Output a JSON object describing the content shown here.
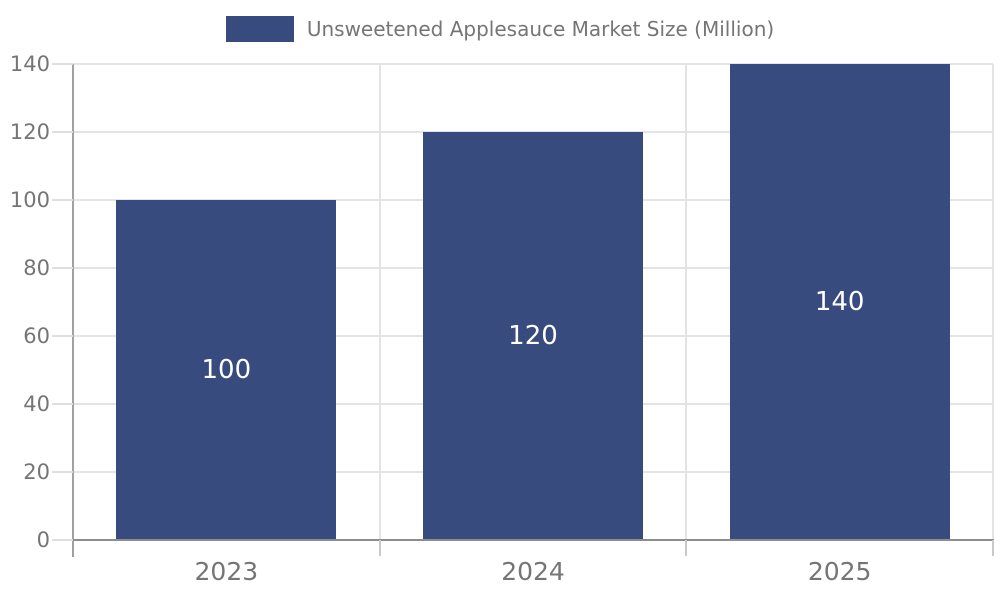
{
  "chart_data": {
    "type": "bar",
    "title": "Unsweetened Applesauce Market Size (Million)",
    "legend": {
      "label": "Unsweetened Applesauce Market Size (Million)",
      "position": "top"
    },
    "categories": [
      "2023",
      "2024",
      "2025"
    ],
    "values": [
      100,
      120,
      140
    ],
    "xlabel": "",
    "ylabel": "",
    "ylim": [
      0,
      140
    ],
    "yticks": [
      0,
      20,
      40,
      60,
      80,
      100,
      120,
      140
    ],
    "grid": true,
    "bar_value_labels": [
      "100",
      "120",
      "140"
    ],
    "colors": {
      "bar": "#384b7e",
      "bar_label_text": "#ffffff",
      "axis_text": "#757575",
      "grid_line": "#e4e4e4",
      "axis_line": "#9a9a9a"
    }
  }
}
